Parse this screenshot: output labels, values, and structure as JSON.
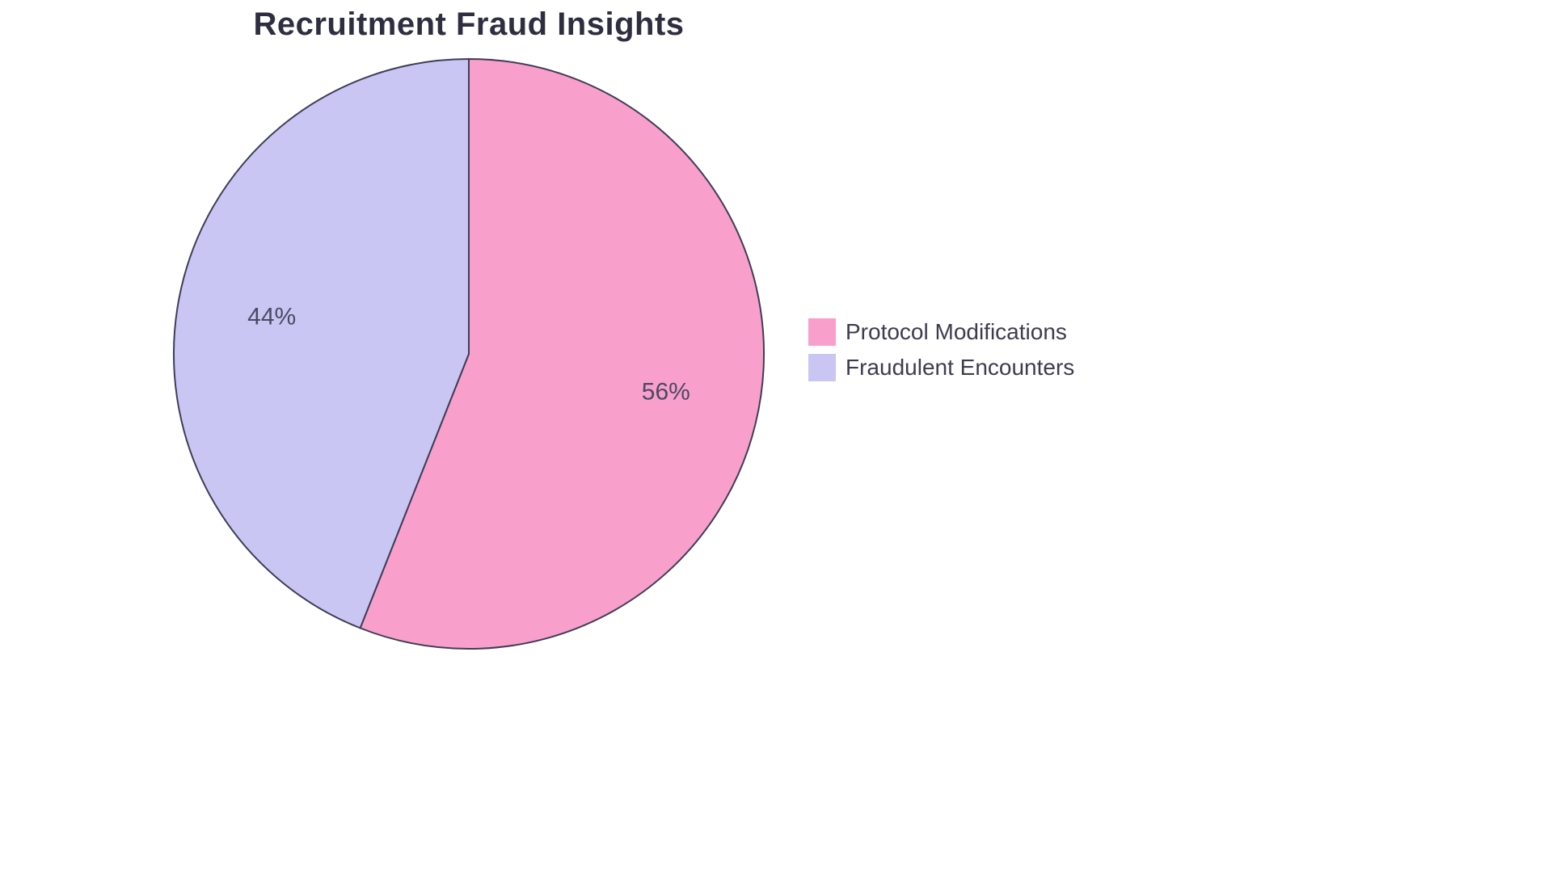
{
  "chart_data": {
    "type": "pie",
    "title": "Recruitment Fraud Insights",
    "slices": [
      {
        "label": "Protocol Modifications",
        "value": 56,
        "percent_label": "56%",
        "color": "#F99FCB"
      },
      {
        "label": "Fraudulent Encounters",
        "value": 44,
        "percent_label": "44%",
        "color": "#C9C6F4"
      }
    ],
    "start_angle_deg": 0,
    "direction": "clockwise",
    "stroke_color": "#3f3d56",
    "label_color": "#4b4a63",
    "title_color": "#2f2e41",
    "legend_position": "right"
  }
}
